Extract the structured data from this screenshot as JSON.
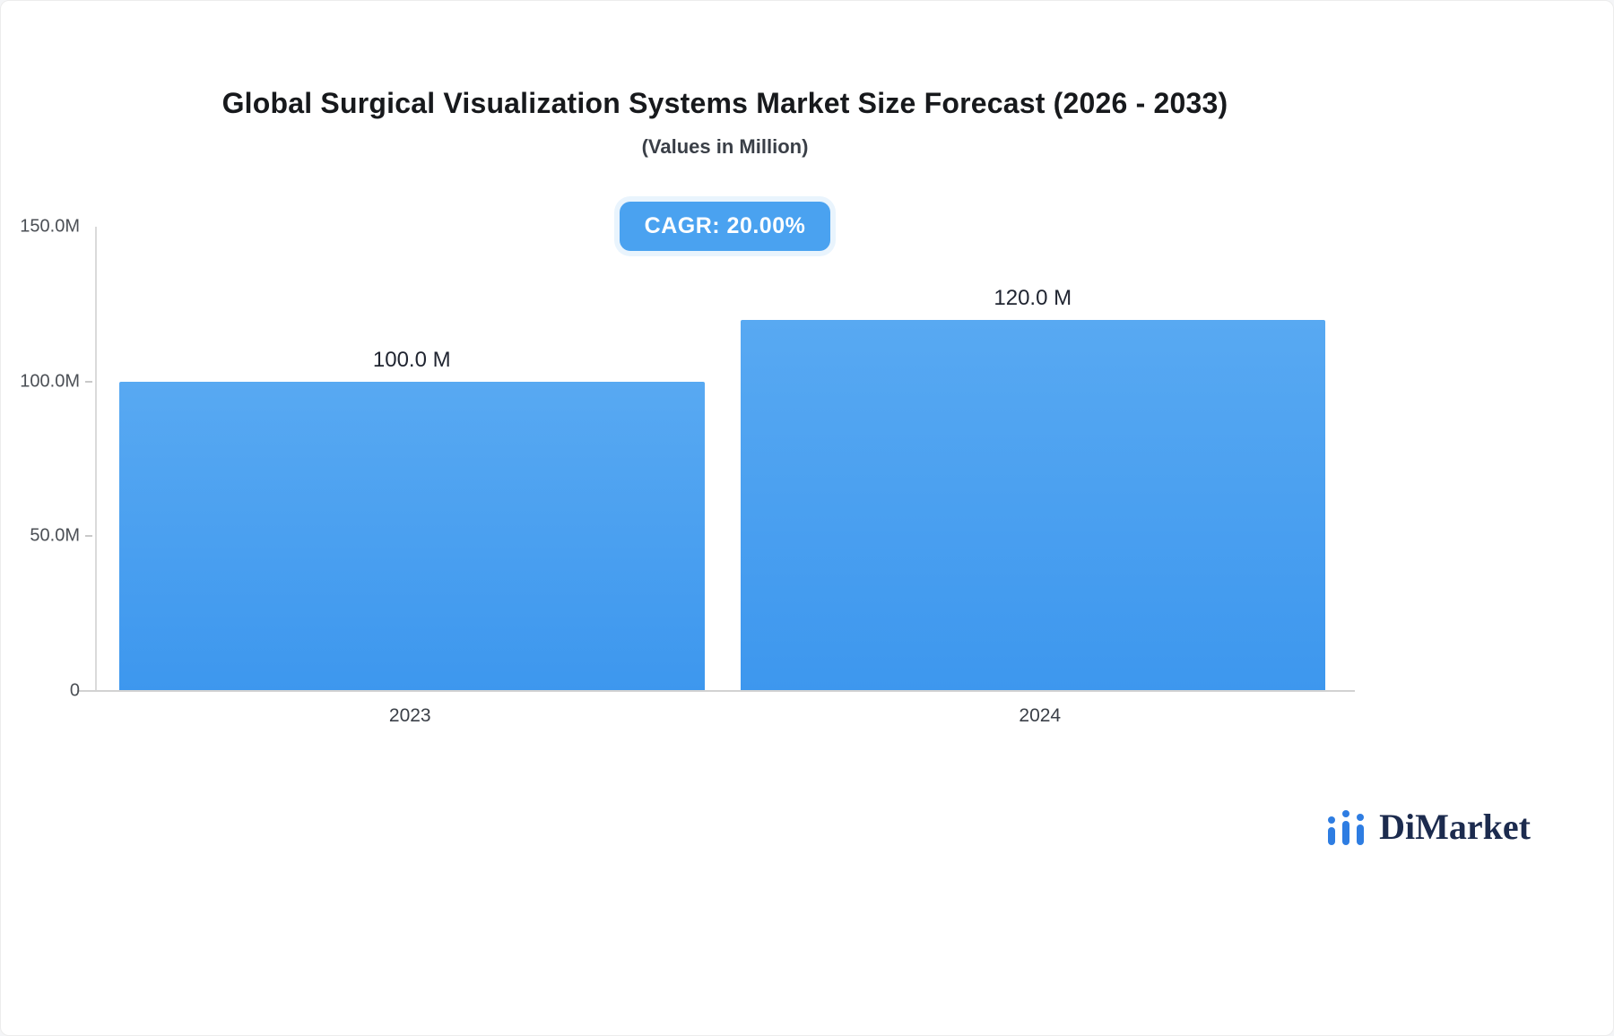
{
  "header": {
    "title": "Global Surgical Visualization Systems Market Size Forecast (2026 - 2033)",
    "subtitle": "(Values in Million)"
  },
  "badge": {
    "label": "CAGR: 20.00%"
  },
  "logo": {
    "text": "DiMarket"
  },
  "colors": {
    "bar_top": "#58a9f2",
    "bar_bottom": "#3d97ee",
    "badge_bg": "#4aa2f0",
    "logo_blue": "#2e7de2",
    "logo_navy": "#1c2b4e",
    "axis_gray": "#d2d2d2"
  },
  "chart_data": {
    "type": "bar",
    "categories": [
      "2023",
      "2024"
    ],
    "values": [
      100,
      120
    ],
    "value_labels": [
      "100.0 M",
      "120.0 M"
    ],
    "title": "Global Surgical Visualization Systems Market Size Forecast (2026 - 2033)",
    "subtitle": "(Values in Million)",
    "cagr": "CAGR: 20.00%",
    "xlabel": "",
    "ylabel": "",
    "ylim": [
      0,
      150
    ],
    "yticks": [
      {
        "value": 0,
        "label": "0"
      },
      {
        "value": 50,
        "label": "50.0M"
      },
      {
        "value": 100,
        "label": "100.0M"
      },
      {
        "value": 150,
        "label": "150.0M"
      }
    ],
    "grid": false,
    "legend": false
  }
}
